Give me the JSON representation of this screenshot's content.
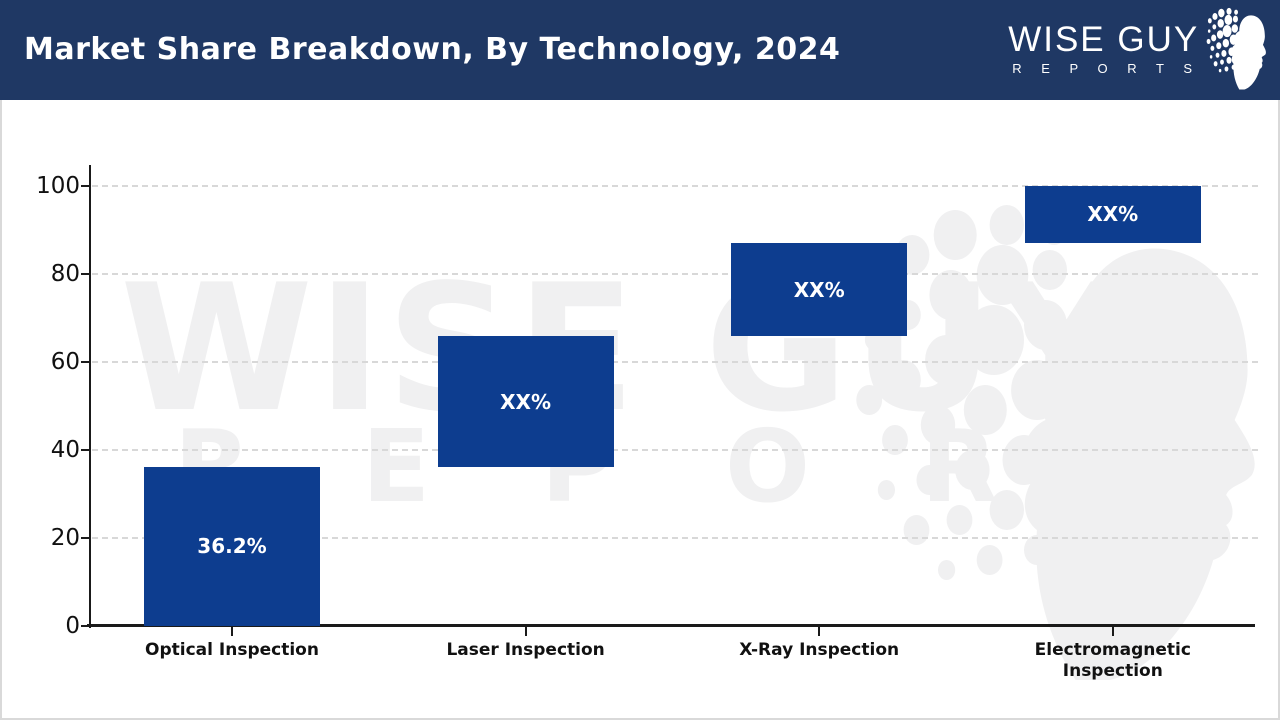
{
  "header": {
    "title": "Market Share Breakdown, By Technology, 2024",
    "logo": {
      "line1": "WISE GUY",
      "line2": "R E P O R T S"
    }
  },
  "watermark": {
    "line1": "WISE GUY",
    "line2": "R E P O R T S"
  },
  "colors": {
    "header_bg": "#1f3864",
    "bar_fill": "#0d3d8f",
    "bar_label": "#ffffff",
    "grid_line": "#d8d8d8",
    "axis_line": "#1a1a1a",
    "tick_text": "#111111",
    "watermark": "#f0f0f1"
  },
  "chart_data": {
    "type": "bar",
    "subtype": "waterfall",
    "title": "Market Share Breakdown, By Technology, 2024",
    "categories": [
      "Optical Inspection",
      "Laser Inspection",
      "X-Ray Inspection",
      "Electromagnetic Inspection"
    ],
    "segments": [
      {
        "category": "Optical Inspection",
        "start": 0,
        "end": 36.2,
        "label": "36.2%"
      },
      {
        "category": "Laser Inspection",
        "start": 36.2,
        "end": 65.8,
        "label": "XX%"
      },
      {
        "category": "X-Ray Inspection",
        "start": 65.8,
        "end": 87.1,
        "label": "XX%"
      },
      {
        "category": "Electromagnetic Inspection",
        "start": 87.1,
        "end": 100,
        "label": "XX%"
      }
    ],
    "ylim": [
      0,
      100
    ],
    "yticks": [
      0,
      20,
      40,
      60,
      80,
      100
    ],
    "xlabel": "",
    "ylabel": "",
    "grid": "dashed-horizontal",
    "legend": "none"
  }
}
